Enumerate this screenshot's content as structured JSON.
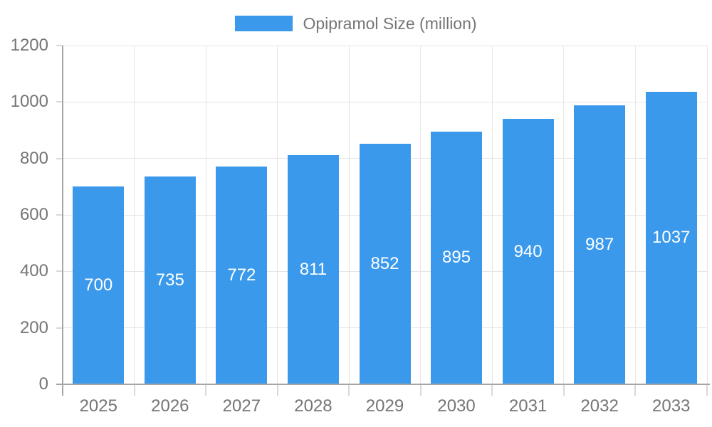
{
  "chart_data": {
    "type": "bar",
    "title": "",
    "categories": [
      "2025",
      "2026",
      "2027",
      "2028",
      "2029",
      "2030",
      "2031",
      "2032",
      "2033"
    ],
    "series": [
      {
        "name": "Opipramol Size (million)",
        "values": [
          700,
          735,
          772,
          811,
          852,
          895,
          940,
          987,
          1037
        ]
      }
    ],
    "xlabel": "",
    "ylabel": "",
    "ylim": [
      0,
      1200
    ],
    "ytick_labels": [
      "0",
      "200",
      "400",
      "600",
      "800",
      "1000",
      "1200"
    ],
    "grid": true,
    "legend_position": "top-center",
    "value_label_position": "inside-center"
  },
  "colors": {
    "bar": "#3b99ec",
    "grid_line": "#e6e6e6",
    "tick_line": "#d9d9d9",
    "axis_line": "#a6a6a6",
    "axis_text": "#757575",
    "legend_text": "#757575",
    "value_label_text": "#ffffff",
    "background": "#ffffff"
  }
}
